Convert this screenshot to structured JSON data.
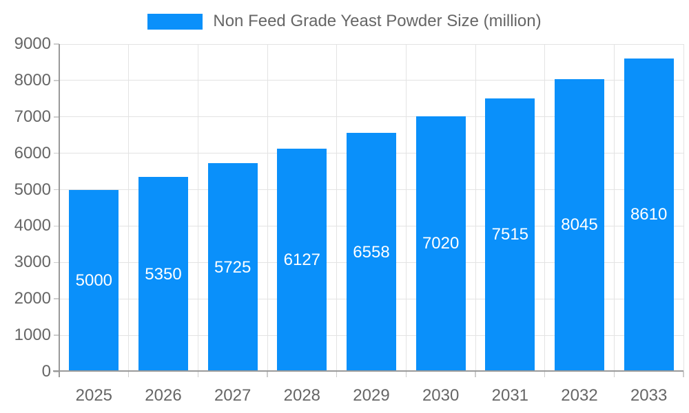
{
  "chart_data": {
    "type": "bar",
    "title": "Non Feed Grade Yeast Powder Size (million)",
    "legend": {
      "position": "top",
      "entries": [
        "Non Feed Grade Yeast Powder Size (million)"
      ]
    },
    "categories": [
      "2025",
      "2026",
      "2027",
      "2028",
      "2029",
      "2030",
      "2031",
      "2032",
      "2033"
    ],
    "values": [
      5000,
      5350,
      5725,
      6127,
      6558,
      7020,
      7515,
      8045,
      8610
    ],
    "value_labels": [
      "5000",
      "5350",
      "5725",
      "6127",
      "6558",
      "7020",
      "7515",
      "8045",
      "8610"
    ],
    "xlabel": "",
    "ylabel": "",
    "ylim": [
      0,
      9000
    ],
    "ytick_step": 1000,
    "ytick_labels": [
      "0",
      "1000",
      "2000",
      "3000",
      "4000",
      "5000",
      "6000",
      "7000",
      "8000",
      "9000"
    ],
    "grid": true,
    "colors": {
      "bar": "#0A90FA",
      "grid_line": "#E3E3E3",
      "axis_line": "#999999",
      "tick_mark": "#CCCCCC",
      "axis_text": "#666666",
      "value_label": "#FFFFFF",
      "background": "#FFFFFF"
    }
  }
}
